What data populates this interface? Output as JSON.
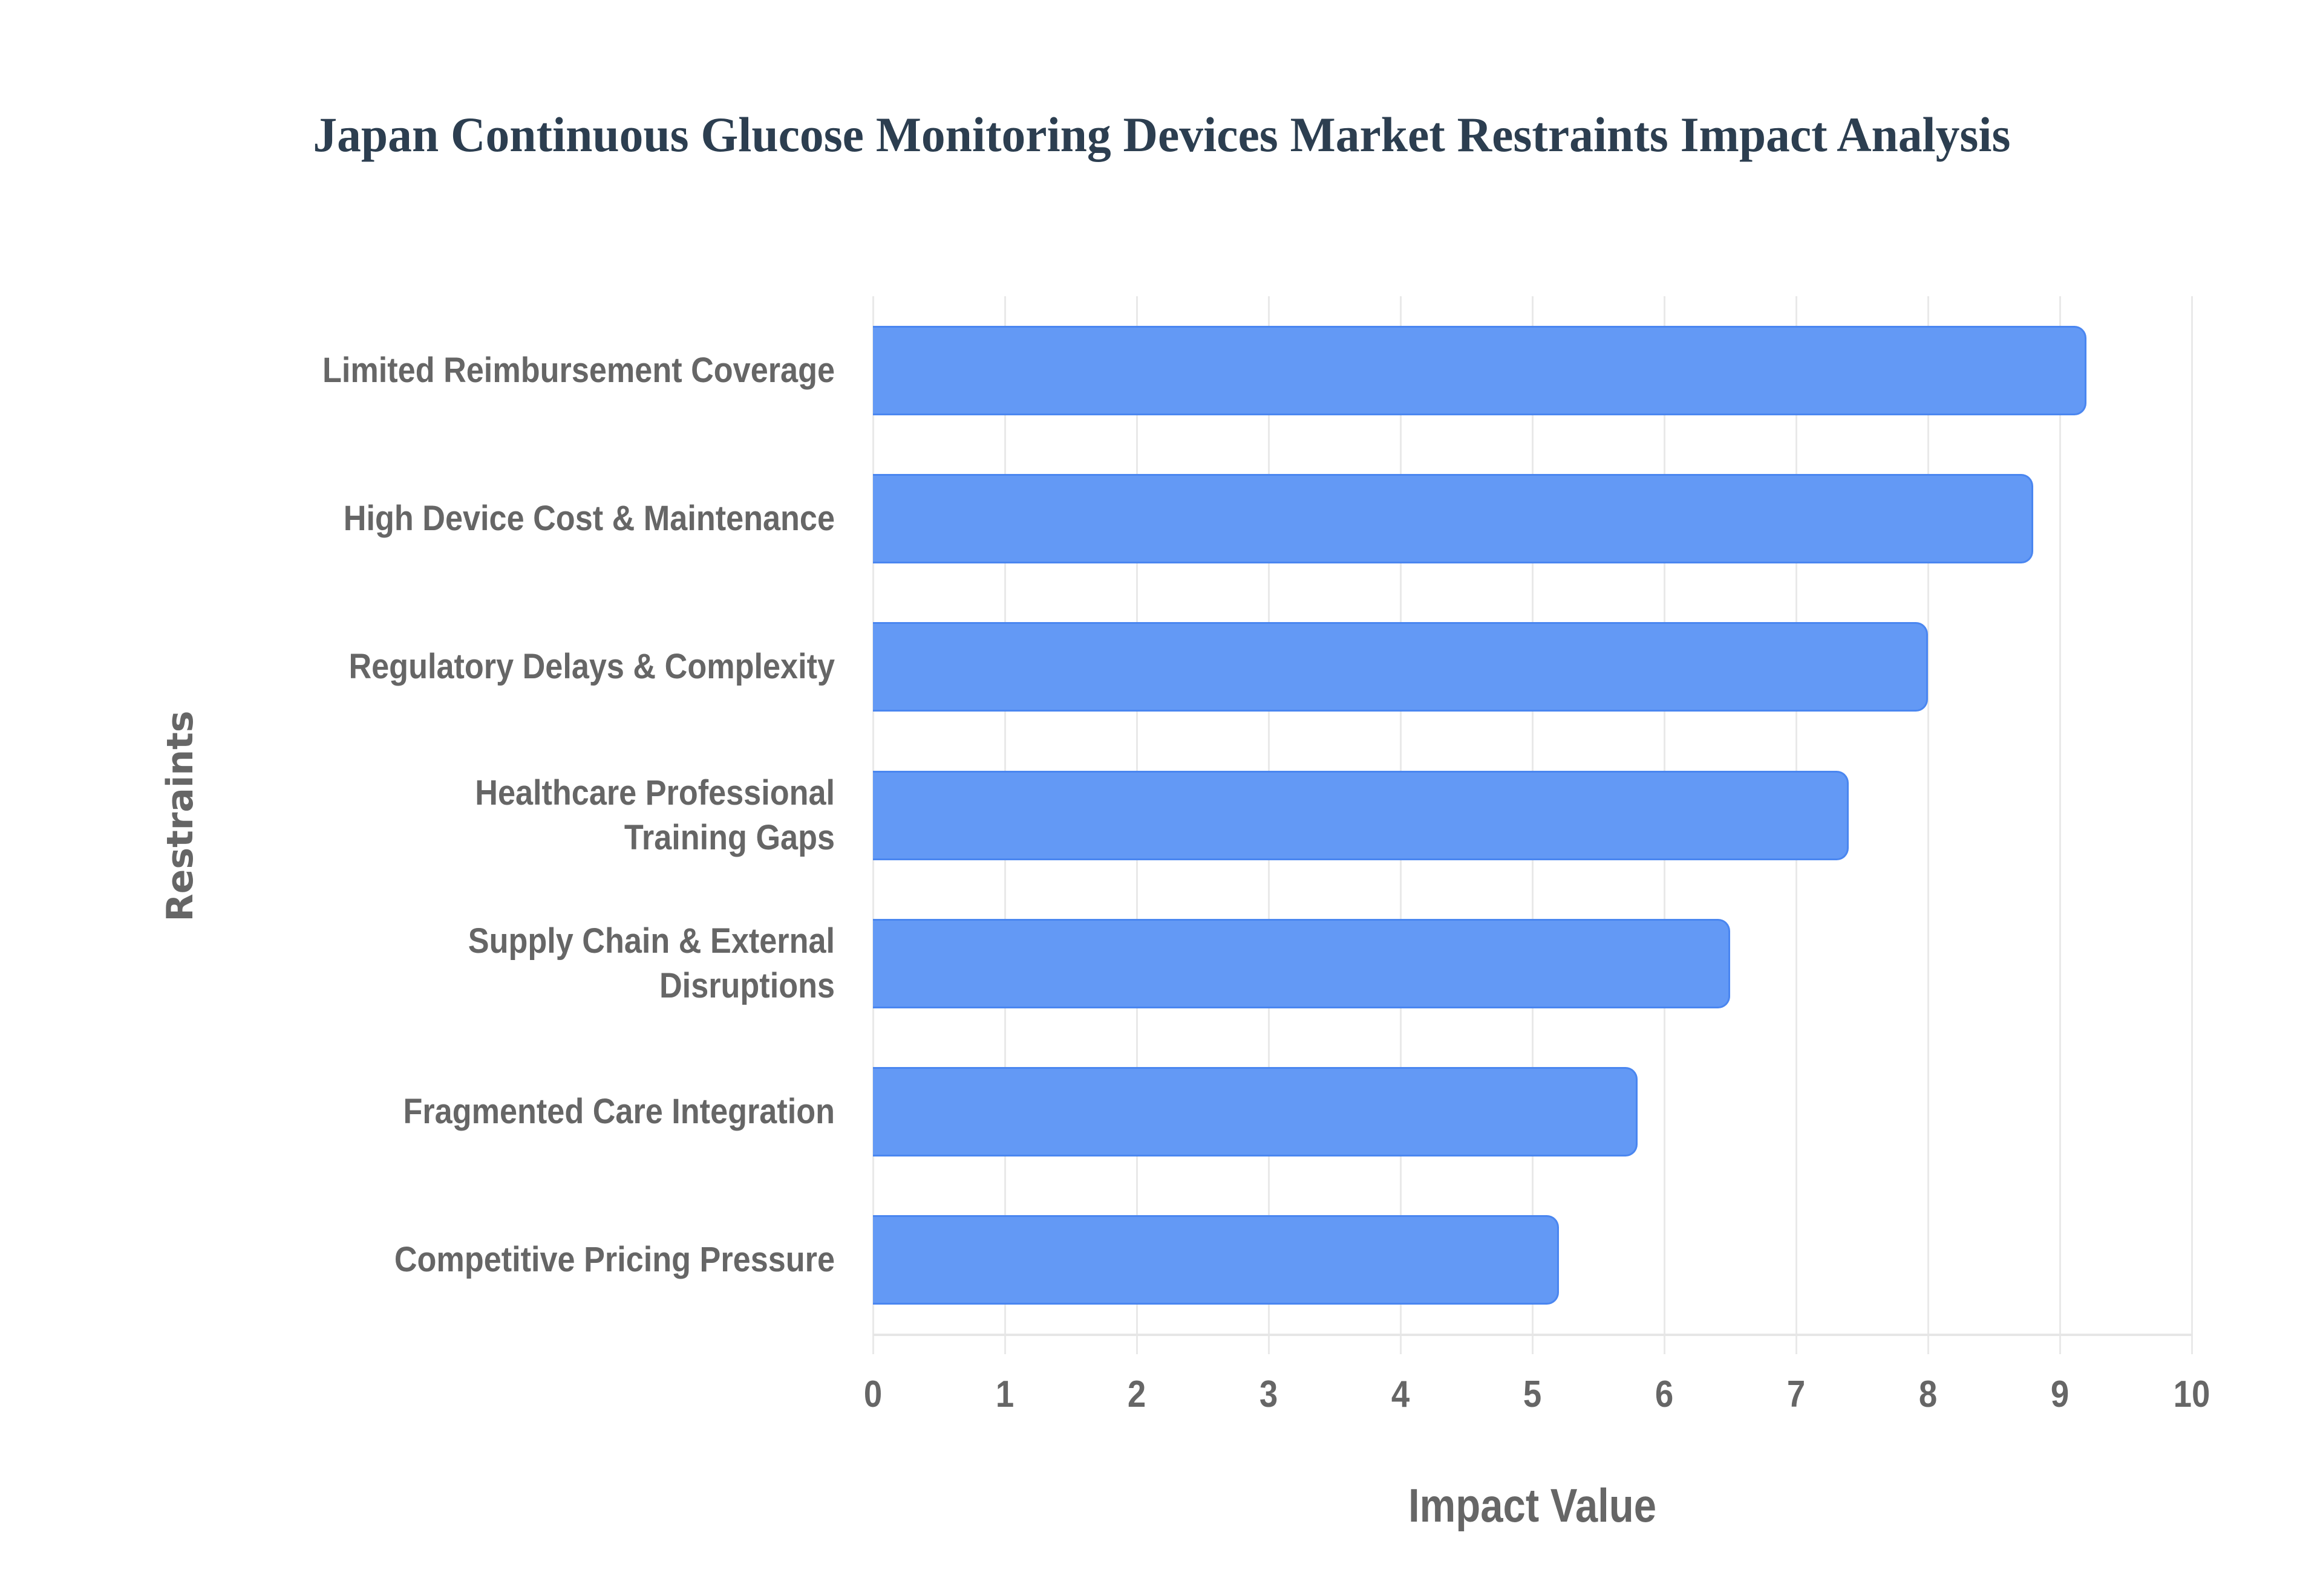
{
  "chart": {
    "title": "Japan Continuous Glucose Monitoring Devices Market Restraints Impact Analysis",
    "xlabel": "Impact Value",
    "ylabel": "Restraints",
    "x_ticks": [
      "0",
      "1",
      "2",
      "3",
      "4",
      "5",
      "6",
      "7",
      "8",
      "9",
      "10"
    ],
    "bar_color": "#6399f5",
    "bar_border_color": "#4a86f0",
    "title_color": "#2c3e50",
    "label_color": "#666666"
  },
  "chart_data": {
    "type": "bar",
    "orientation": "horizontal",
    "title": "Japan Continuous Glucose Monitoring Devices Market Restraints Impact Analysis",
    "xlabel": "Impact Value",
    "ylabel": "Restraints",
    "categories": [
      "Limited Reimbursement Coverage",
      "High Device Cost & Maintenance",
      "Regulatory Delays & Complexity",
      "Healthcare Professional Training Gaps",
      "Supply Chain & External Disruptions",
      "Fragmented Care Integration",
      "Competitive Pricing Pressure"
    ],
    "values": [
      9.2,
      8.8,
      8.0,
      7.4,
      6.5,
      5.8,
      5.2
    ],
    "xlim": [
      0,
      10
    ],
    "x_ticks": [
      0,
      1,
      2,
      3,
      4,
      5,
      6,
      7,
      8,
      9,
      10
    ],
    "grid": true,
    "legend": null
  },
  "bars": [
    {
      "label": "Limited Reimbursement Coverage",
      "display_label": "Limited Reimbursement Coverage",
      "value": 9.2
    },
    {
      "label": "High Device Cost & Maintenance",
      "display_label": "High Device Cost & Maintenance",
      "value": 8.8
    },
    {
      "label": "Regulatory Delays & Complexity",
      "display_label": "Regulatory Delays & Complexity",
      "value": 8.0
    },
    {
      "label": "Healthcare Professional Training Gaps",
      "display_label": "Healthcare Professional\nTraining Gaps",
      "value": 7.4
    },
    {
      "label": "Supply Chain & External Disruptions",
      "display_label": "Supply Chain & External\nDisruptions",
      "value": 6.5
    },
    {
      "label": "Fragmented Care Integration",
      "display_label": "Fragmented Care Integration",
      "value": 5.8
    },
    {
      "label": "Competitive Pricing Pressure",
      "display_label": "Competitive Pricing Pressure",
      "value": 5.2
    }
  ]
}
